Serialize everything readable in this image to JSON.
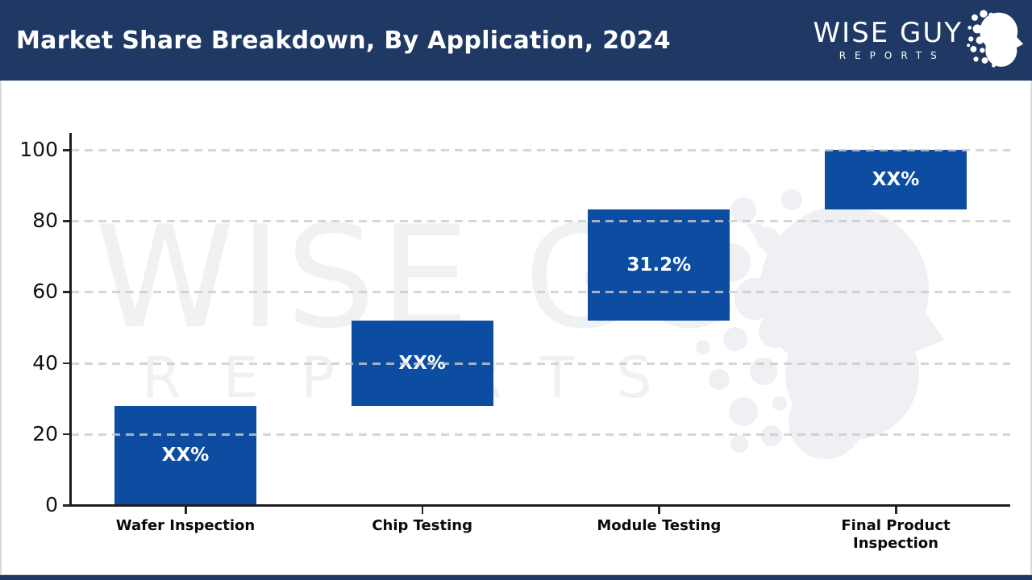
{
  "header": {
    "title": "Market Share Breakdown, By Application, 2024",
    "logo": {
      "line1": "WISE GUY",
      "line2": "REPORTS"
    }
  },
  "watermark": {
    "line1": "WISE GUY",
    "line2": "REPORTS"
  },
  "colors": {
    "header_bg": "#1f3864",
    "footer_bg": "#1f3864",
    "bar_blue": "#0c4da2",
    "bar_label_text": "#ffffff",
    "axis": "#1d1d1d",
    "grid": "#cbcbcb",
    "watermark_gray": "#f0f1f3",
    "title_text": "#ffffff"
  },
  "chart_data": {
    "type": "bar",
    "subtype": "floating-waterfall",
    "title": "Market Share Breakdown, By Application, 2024",
    "categories": [
      "Wafer Inspection",
      "Chip Testing",
      "Module Testing",
      "Final Product Inspection"
    ],
    "bars": [
      {
        "category": "Wafer Inspection",
        "start": 0,
        "end": 28,
        "label": "XX%"
      },
      {
        "category": "Chip Testing",
        "start": 28,
        "end": 52,
        "label": "XX%"
      },
      {
        "category": "Module Testing",
        "start": 52,
        "end": 83.2,
        "label": "31.2%"
      },
      {
        "category": "Final Product Inspection",
        "start": 83.2,
        "end": 100,
        "label": "XX%"
      }
    ],
    "yticks": [
      0,
      20,
      40,
      60,
      80,
      100
    ],
    "ylim": [
      0,
      100
    ],
    "xlabel": "",
    "ylabel": "",
    "grid": "horizontal-dashed",
    "legend": "none"
  }
}
